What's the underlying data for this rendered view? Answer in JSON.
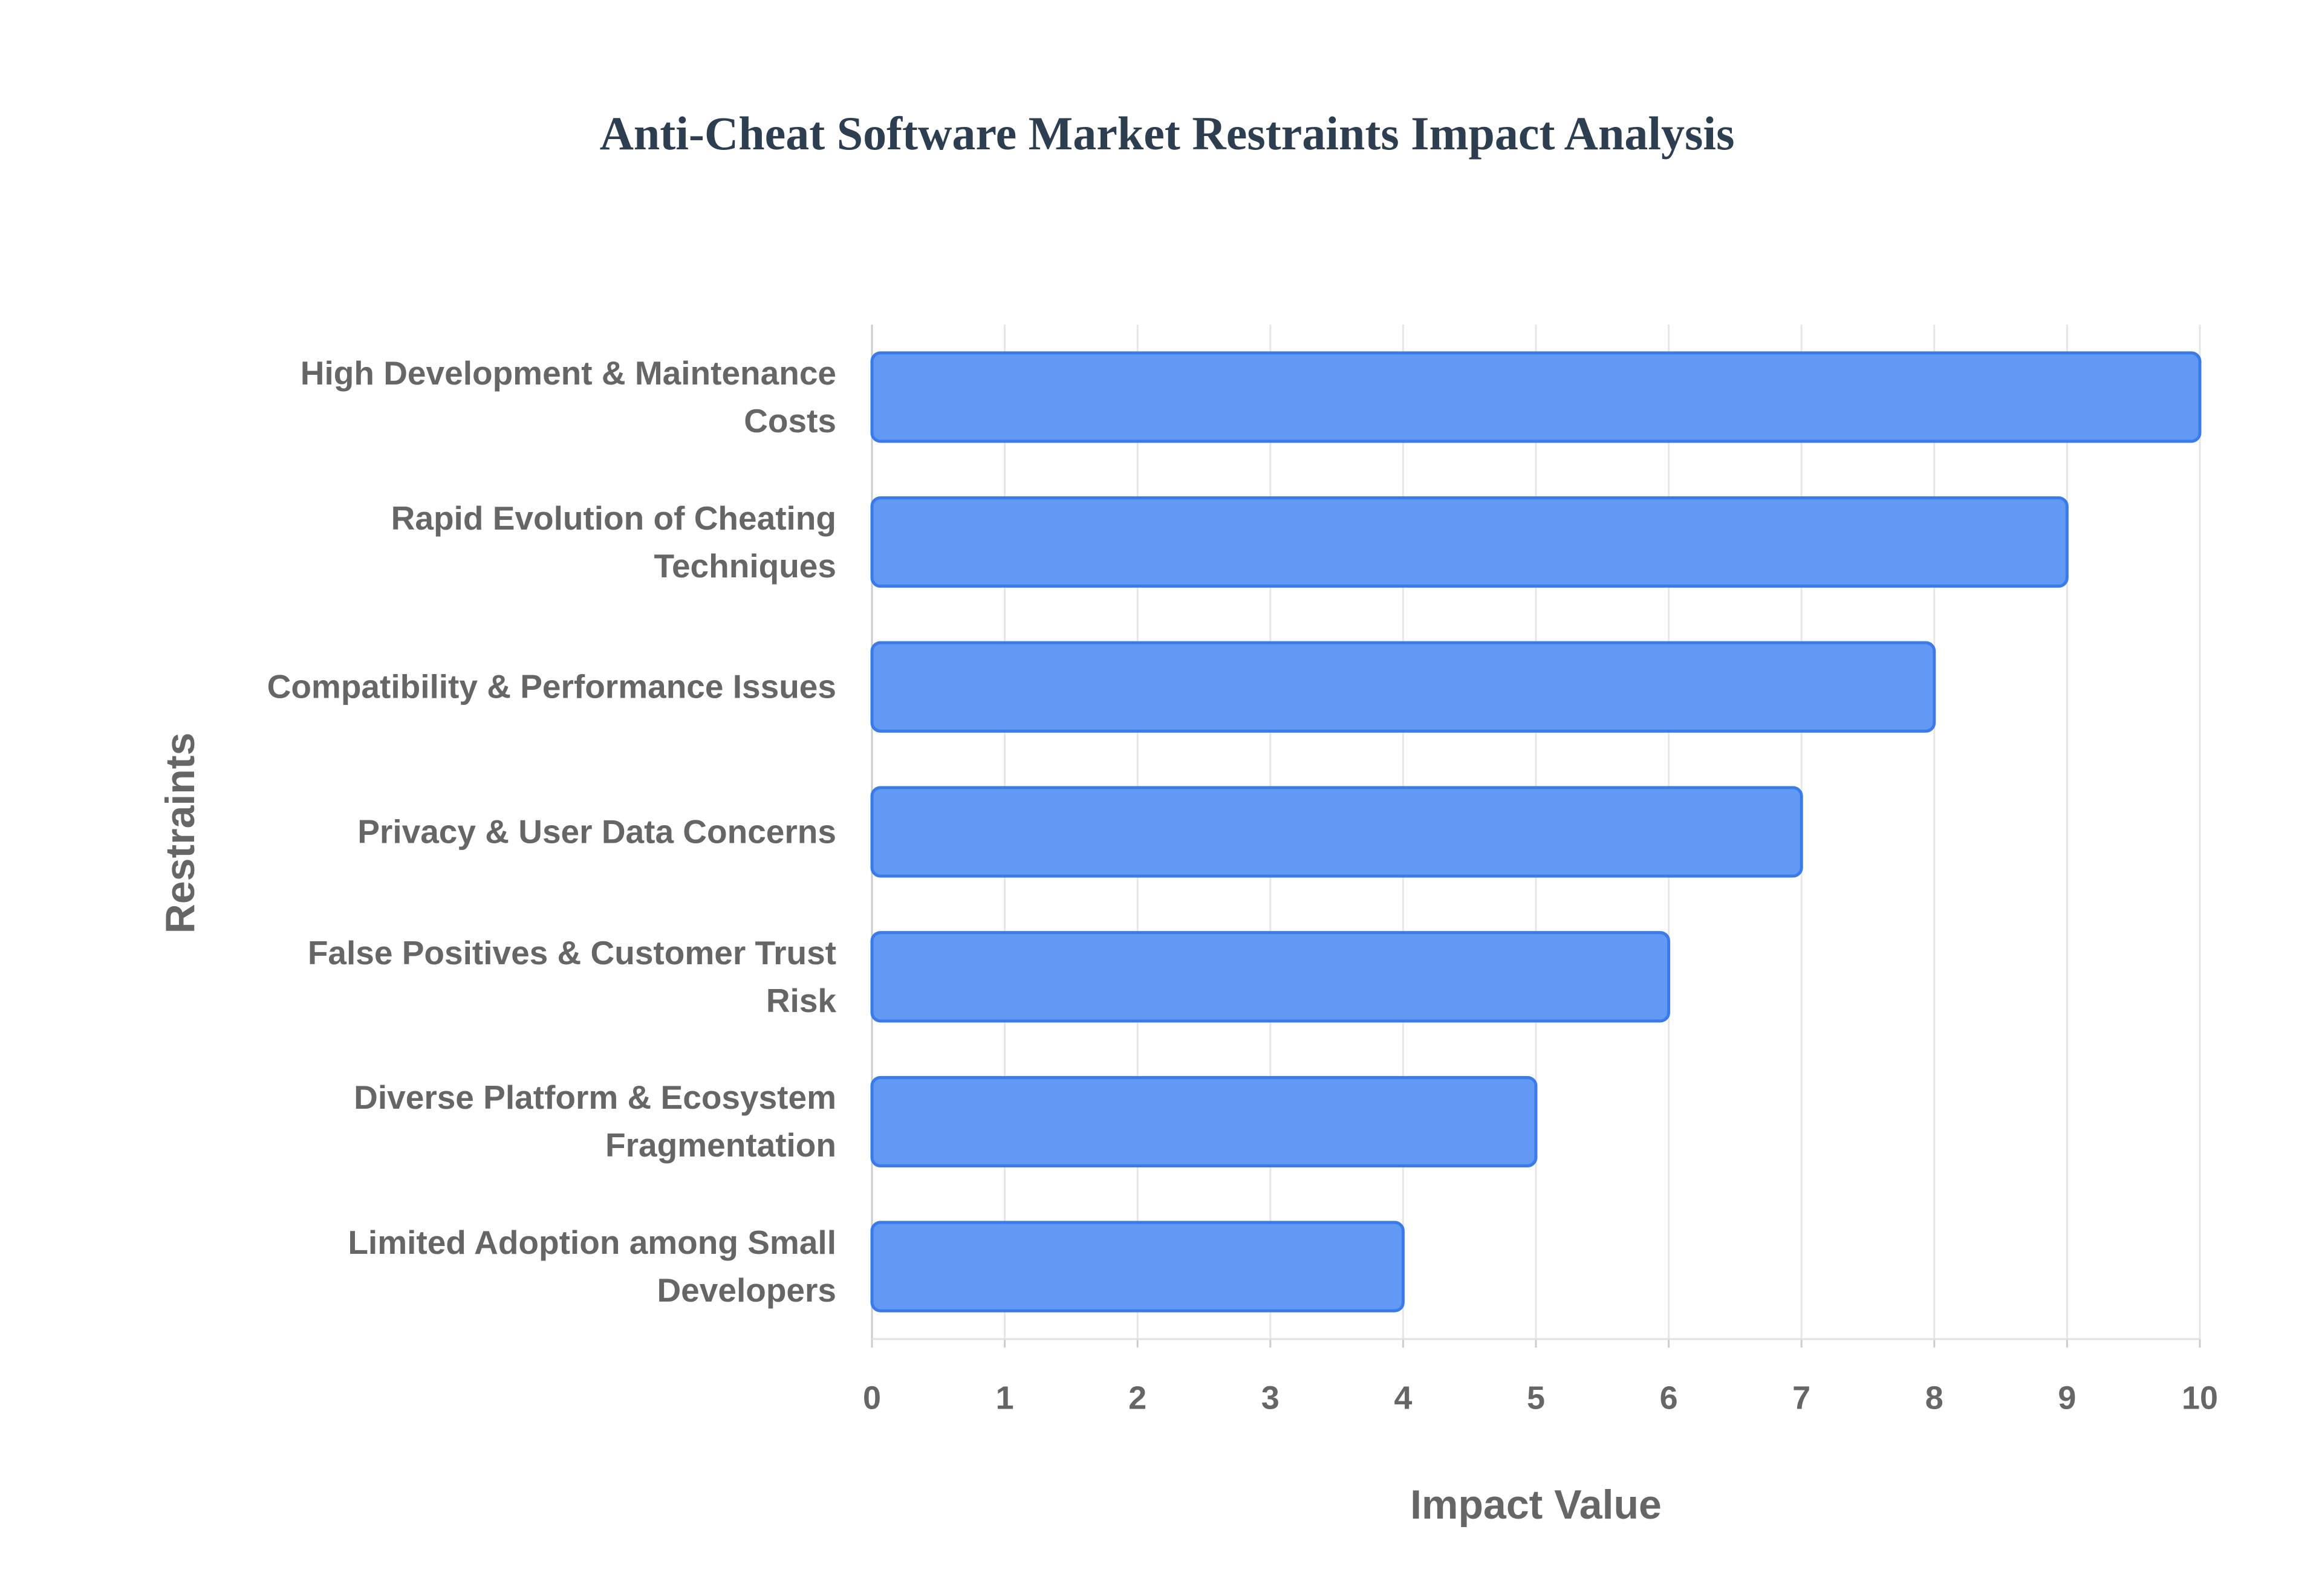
{
  "chart_data": {
    "type": "bar",
    "orientation": "horizontal",
    "title": "Anti-Cheat Software Market Restraints Impact Analysis",
    "x_label": "Impact Value",
    "y_label": "Restraints",
    "categories": [
      "High Development & Maintenance Costs",
      "Rapid Evolution of Cheating Techniques",
      "Compatibility & Performance Issues",
      "Privacy & User Data Concerns",
      "False Positives & Customer Trust Risk",
      "Diverse Platform & Ecosystem Fragmentation",
      "Limited Adoption among Small Developers"
    ],
    "values": [
      10,
      9,
      8,
      7,
      6,
      5,
      4
    ],
    "color": "#6199f5",
    "border_color": "#3b7be8",
    "xlim": [
      0,
      10
    ],
    "xticks": [
      0,
      1,
      2,
      3,
      4,
      5,
      6,
      7,
      8,
      9,
      10
    ],
    "grid": true
  }
}
